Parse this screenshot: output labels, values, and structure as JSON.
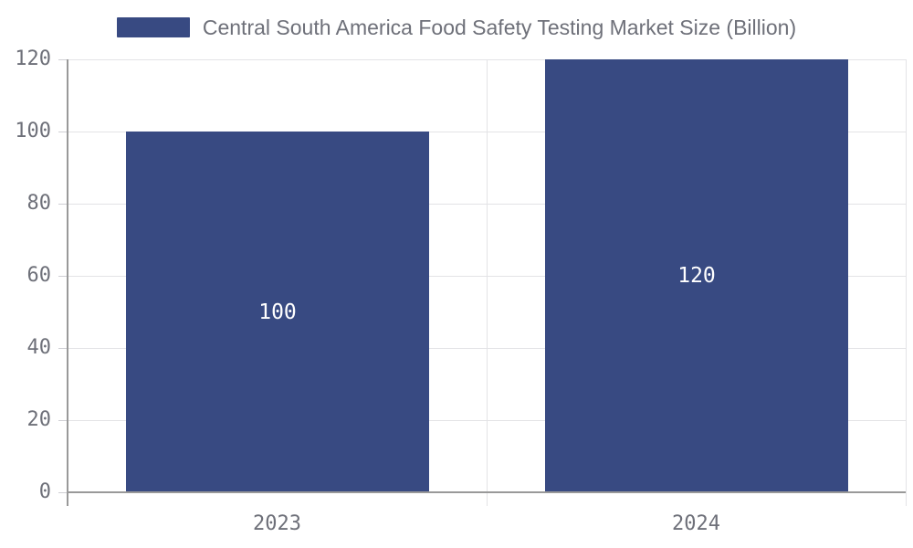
{
  "chart_data": {
    "type": "bar",
    "title": "Central South America Food Safety Testing Market Size (Billion)",
    "categories": [
      "2023",
      "2024"
    ],
    "series": [
      {
        "name": "Central South America Food Safety Testing Market Size (Billion)",
        "values": [
          100,
          120
        ]
      }
    ],
    "values": [
      100,
      120
    ],
    "value_labels": [
      "100",
      "120"
    ],
    "xlabel": "",
    "ylabel": "",
    "ylim": [
      0,
      120
    ],
    "yticks": [
      0,
      20,
      40,
      60,
      80,
      100,
      120
    ],
    "grid": true,
    "legend_position": "top",
    "colors": {
      "bar": "#384A82",
      "gridline": "#E3E3E6",
      "axis": "#999999",
      "tick_text": "#6E7079",
      "value_text": "#FFFFFF"
    }
  }
}
